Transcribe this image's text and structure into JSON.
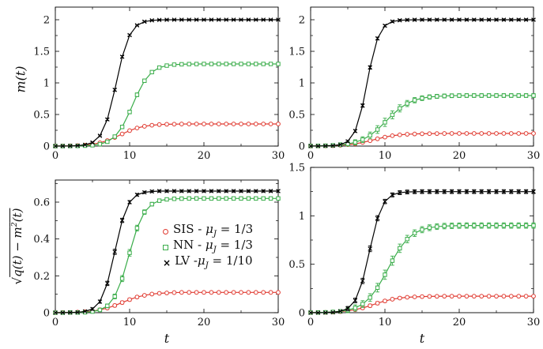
{
  "figure": {
    "background": "#ffffff",
    "axis_color": "#000000",
    "colors": {
      "sis": "#e03a30",
      "nn": "#3aad4a",
      "lv": "#000000"
    },
    "legend": {
      "position": "inside bottom-left subplot, center-right",
      "items": [
        {
          "series": "SIS",
          "marker": "circle-open",
          "color": "#e03a30",
          "label": "SIS - μ_J = 1/3"
        },
        {
          "series": "NN",
          "marker": "square-open",
          "color": "#3aad4a",
          "label": "NN - μ_J = 1/3"
        },
        {
          "series": "LV",
          "marker": "x",
          "color": "#000000",
          "label": "LV -μ_J = 1/10"
        }
      ]
    }
  },
  "chart_data": [
    {
      "id": "top-left",
      "type": "line",
      "title": "",
      "xlabel": "",
      "ylabel": "m(t)",
      "xlim": [
        0,
        30
      ],
      "ylim": [
        0,
        2.2
      ],
      "xticks": [
        0,
        10,
        20,
        30
      ],
      "yticks": [
        0,
        0.5,
        1,
        1.5,
        2
      ],
      "x_minor": [
        5,
        15,
        25
      ],
      "y_minor": [
        0.25,
        0.75,
        1.25,
        1.75
      ],
      "grid": false,
      "legend": false,
      "x": [
        0,
        1,
        2,
        3,
        4,
        5,
        6,
        7,
        8,
        9,
        10,
        11,
        12,
        13,
        14,
        15,
        16,
        17,
        18,
        19,
        20,
        21,
        22,
        23,
        24,
        25,
        26,
        27,
        28,
        29,
        30
      ],
      "series": [
        {
          "name": "SIS - μ_J = 1/3",
          "marker": "circle-open",
          "color": "#e03a30",
          "err_base": 0.008,
          "err_peak": 0.006,
          "values": [
            0.001,
            0.002,
            0.004,
            0.008,
            0.016,
            0.029,
            0.052,
            0.087,
            0.136,
            0.192,
            0.245,
            0.286,
            0.313,
            0.33,
            0.34,
            0.345,
            0.347,
            0.349,
            0.35,
            0.35,
            0.35,
            0.35,
            0.35,
            0.35,
            0.35,
            0.35,
            0.35,
            0.35,
            0.35,
            0.35,
            0.35
          ]
        },
        {
          "name": "NN - μ_J = 1/3",
          "marker": "square-open",
          "color": "#3aad4a",
          "err_base": 0.015,
          "err_peak": 0.015,
          "values": [
            0,
            0,
            0.001,
            0.002,
            0.006,
            0.013,
            0.03,
            0.068,
            0.15,
            0.303,
            0.54,
            0.812,
            1.034,
            1.171,
            1.242,
            1.274,
            1.289,
            1.295,
            1.298,
            1.299,
            1.3,
            1.3,
            1.3,
            1.3,
            1.3,
            1.3,
            1.3,
            1.3,
            1.3,
            1.3,
            1.3
          ]
        },
        {
          "name": "LV -μ_J = 1/10",
          "marker": "x",
          "color": "#000000",
          "err_base": 0.01,
          "err_peak": 0.01,
          "values": [
            0,
            0.001,
            0.002,
            0.006,
            0.02,
            0.057,
            0.163,
            0.422,
            0.89,
            1.414,
            1.757,
            1.912,
            1.97,
            1.99,
            1.997,
            1.999,
            2,
            2,
            2,
            2,
            2,
            2,
            2,
            2,
            2,
            2,
            2,
            2,
            2,
            2,
            2
          ]
        }
      ]
    },
    {
      "id": "top-right",
      "type": "line",
      "title": "",
      "xlabel": "",
      "ylabel": "",
      "xlim": [
        0,
        30
      ],
      "ylim": [
        0,
        2.2
      ],
      "xticks": [
        0,
        10,
        20,
        30
      ],
      "yticks": [
        0,
        0.5,
        1,
        1.5,
        2
      ],
      "x_minor": [
        5,
        15,
        25
      ],
      "y_minor": [
        0.25,
        0.75,
        1.25,
        1.75
      ],
      "grid": false,
      "legend": false,
      "x": [
        0,
        1,
        2,
        3,
        4,
        5,
        6,
        7,
        8,
        9,
        10,
        11,
        12,
        13,
        14,
        15,
        16,
        17,
        18,
        19,
        20,
        21,
        22,
        23,
        24,
        25,
        26,
        27,
        28,
        29,
        30
      ],
      "series": [
        {
          "name": "SIS - μ_J = 1/3",
          "marker": "circle-open",
          "color": "#e03a30",
          "err_base": 0.008,
          "err_peak": 0.008,
          "values": [
            0.001,
            0.002,
            0.004,
            0.007,
            0.013,
            0.022,
            0.036,
            0.058,
            0.085,
            0.115,
            0.142,
            0.164,
            0.178,
            0.187,
            0.192,
            0.195,
            0.197,
            0.198,
            0.199,
            0.2,
            0.2,
            0.2,
            0.2,
            0.2,
            0.2,
            0.2,
            0.2,
            0.2,
            0.2,
            0.2,
            0.2
          ]
        },
        {
          "name": "NN - μ_J = 1/3",
          "marker": "square-open",
          "color": "#3aad4a",
          "err_base": 0.03,
          "err_peak": 0.035,
          "values": [
            0.002,
            0.003,
            0.006,
            0.011,
            0.019,
            0.034,
            0.06,
            0.102,
            0.169,
            0.262,
            0.376,
            0.494,
            0.597,
            0.674,
            0.726,
            0.758,
            0.777,
            0.787,
            0.793,
            0.797,
            0.799,
            0.8,
            0.8,
            0.8,
            0.8,
            0.8,
            0.8,
            0.8,
            0.8,
            0.8,
            0.8
          ]
        },
        {
          "name": "LV -μ_J = 1/10",
          "marker": "x",
          "color": "#000000",
          "err_base": 0.015,
          "err_peak": 0.012,
          "values": [
            0,
            0.001,
            0.003,
            0.007,
            0.022,
            0.075,
            0.238,
            0.641,
            1.245,
            1.704,
            1.905,
            1.972,
            1.991,
            1.997,
            1.999,
            2,
            2,
            2,
            2,
            2,
            2,
            2,
            2,
            2,
            2,
            2,
            2,
            2,
            2,
            2,
            2
          ]
        }
      ]
    },
    {
      "id": "bottom-left",
      "type": "line",
      "title": "",
      "xlabel": "t",
      "ylabel": "sqrt(q(t) − m^2(t))",
      "xlim": [
        0,
        30
      ],
      "ylim": [
        0,
        0.72
      ],
      "xticks": [
        0,
        10,
        20,
        30
      ],
      "yticks": [
        0,
        0.2,
        0.4,
        0.6
      ],
      "x_minor": [
        5,
        15,
        25
      ],
      "y_minor": [
        0.1,
        0.3,
        0.5,
        0.7
      ],
      "grid": false,
      "legend": true,
      "x": [
        0,
        1,
        2,
        3,
        4,
        5,
        6,
        7,
        8,
        9,
        10,
        11,
        12,
        13,
        14,
        15,
        16,
        17,
        18,
        19,
        20,
        21,
        22,
        23,
        24,
        25,
        26,
        27,
        28,
        29,
        30
      ],
      "series": [
        {
          "name": "SIS - μ_J = 1/3",
          "marker": "circle-open",
          "color": "#e03a30",
          "err_base": 0.004,
          "err_peak": 0.004,
          "values": [
            0,
            0.001,
            0.001,
            0.003,
            0.005,
            0.008,
            0.016,
            0.025,
            0.039,
            0.055,
            0.071,
            0.085,
            0.094,
            0.101,
            0.105,
            0.107,
            0.109,
            0.11,
            0.11,
            0.11,
            0.11,
            0.11,
            0.11,
            0.11,
            0.11,
            0.11,
            0.11,
            0.11,
            0.11,
            0.11,
            0.11
          ]
        },
        {
          "name": "NN - μ_J = 1/3",
          "marker": "square-open",
          "color": "#3aad4a",
          "err_base": 0.008,
          "err_peak": 0.01,
          "values": [
            0,
            0,
            0.001,
            0.001,
            0.002,
            0.006,
            0.015,
            0.037,
            0.088,
            0.185,
            0.325,
            0.459,
            0.546,
            0.589,
            0.608,
            0.615,
            0.618,
            0.619,
            0.62,
            0.62,
            0.62,
            0.62,
            0.62,
            0.62,
            0.62,
            0.62,
            0.62,
            0.62,
            0.62,
            0.62,
            0.62
          ]
        },
        {
          "name": "LV -μ_J = 1/10",
          "marker": "x",
          "color": "#000000",
          "err_base": 0.006,
          "err_peak": 0.008,
          "values": [
            0,
            0,
            0.001,
            0.002,
            0.007,
            0.02,
            0.06,
            0.159,
            0.33,
            0.501,
            0.6,
            0.64,
            0.653,
            0.658,
            0.66,
            0.66,
            0.66,
            0.66,
            0.66,
            0.66,
            0.66,
            0.66,
            0.66,
            0.66,
            0.66,
            0.66,
            0.66,
            0.66,
            0.66,
            0.66,
            0.66
          ]
        }
      ]
    },
    {
      "id": "bottom-right",
      "type": "line",
      "title": "",
      "xlabel": "t",
      "ylabel": "",
      "xlim": [
        0,
        30
      ],
      "ylim": [
        0,
        1.5
      ],
      "xticks": [
        0,
        10,
        20,
        30
      ],
      "yticks": [
        0,
        0.5,
        1,
        1.5
      ],
      "x_minor": [
        5,
        15,
        25
      ],
      "y_minor": [
        0.25,
        0.75,
        1.25
      ],
      "grid": false,
      "legend": false,
      "x": [
        0,
        1,
        2,
        3,
        4,
        5,
        6,
        7,
        8,
        9,
        10,
        11,
        12,
        13,
        14,
        15,
        16,
        17,
        18,
        19,
        20,
        21,
        22,
        23,
        24,
        25,
        26,
        27,
        28,
        29,
        30
      ],
      "series": [
        {
          "name": "SIS - μ_J = 1/3",
          "marker": "circle-open",
          "color": "#e03a30",
          "err_base": 0.008,
          "err_peak": 0.008,
          "values": [
            0.001,
            0.002,
            0.003,
            0.006,
            0.011,
            0.019,
            0.031,
            0.049,
            0.072,
            0.098,
            0.121,
            0.139,
            0.151,
            0.159,
            0.163,
            0.166,
            0.168,
            0.169,
            0.17,
            0.17,
            0.17,
            0.17,
            0.17,
            0.17,
            0.17,
            0.17,
            0.17,
            0.17,
            0.17,
            0.17,
            0.17
          ]
        },
        {
          "name": "NN - μ_J = 1/3",
          "marker": "square-open",
          "color": "#3aad4a",
          "err_base": 0.028,
          "err_peak": 0.02,
          "values": [
            0.001,
            0.002,
            0.004,
            0.008,
            0.014,
            0.026,
            0.049,
            0.089,
            0.156,
            0.258,
            0.392,
            0.537,
            0.665,
            0.76,
            0.821,
            0.857,
            0.877,
            0.888,
            0.894,
            0.897,
            0.899,
            0.9,
            0.9,
            0.9,
            0.9,
            0.9,
            0.9,
            0.9,
            0.9,
            0.9,
            0.9
          ]
        },
        {
          "name": "LV -μ_J = 1/10",
          "marker": "x",
          "color": "#000000",
          "err_base": 0.02,
          "err_peak": 0.01,
          "values": [
            0,
            0,
            0.001,
            0.004,
            0.014,
            0.043,
            0.126,
            0.328,
            0.66,
            0.975,
            1.148,
            1.216,
            1.239,
            1.246,
            1.249,
            1.25,
            1.25,
            1.25,
            1.25,
            1.25,
            1.25,
            1.25,
            1.25,
            1.25,
            1.25,
            1.25,
            1.25,
            1.25,
            1.25,
            1.25,
            1.25
          ]
        }
      ]
    }
  ]
}
